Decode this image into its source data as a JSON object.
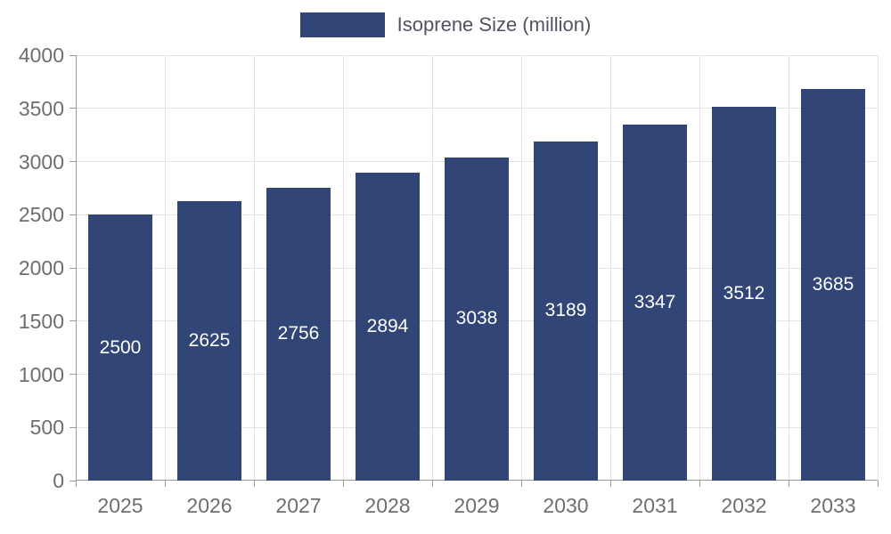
{
  "chart_data": {
    "type": "bar",
    "title": "Isoprene Size (million)",
    "categories": [
      "2025",
      "2026",
      "2027",
      "2028",
      "2029",
      "2030",
      "2031",
      "2032",
      "2033"
    ],
    "values": [
      2500,
      2625,
      2756,
      2894,
      3038,
      3189,
      3347,
      3512,
      3685
    ],
    "xlabel": "",
    "ylabel": "",
    "ylim": [
      0,
      4000
    ],
    "ytick_step": 500,
    "ytick_labels": [
      "0",
      "500",
      "1000",
      "1500",
      "2000",
      "2500",
      "3000",
      "3500",
      "4000"
    ],
    "grid": true,
    "legend_position": "top",
    "colors": {
      "bar": "#314577",
      "bar_value_label": "#ffffff",
      "gridline": "#e3e3e3",
      "axis": "#9a9a9a",
      "tick_label": "#6e6e6e",
      "legend_text": "#525263"
    }
  },
  "legend": {
    "label": "Isoprene Size (million)"
  }
}
